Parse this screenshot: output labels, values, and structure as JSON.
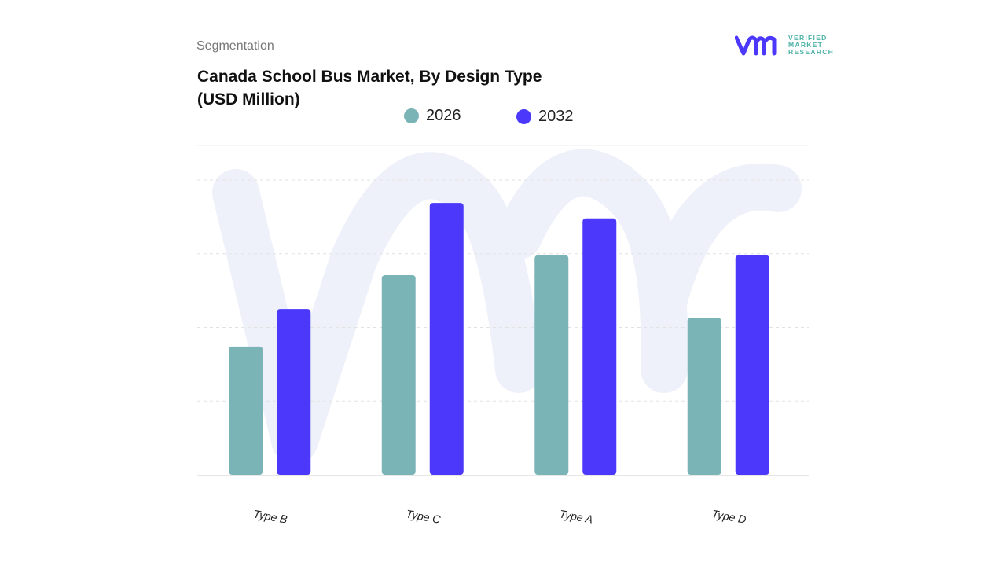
{
  "header": {
    "segmentation": "Segmentation",
    "title_line1": "Canada School Bus Market, By Design Type",
    "title_line2": "(USD Million)"
  },
  "logo": {
    "line1": "VERIFIED",
    "line2": "MARKET",
    "line3": "RESEARCH",
    "mark": "vmr"
  },
  "chart_data": {
    "type": "bar",
    "title": "Canada School Bus Market, By Design Type (USD Million)",
    "categories": [
      "Type B",
      "Type C",
      "Type A",
      "Type D"
    ],
    "series": [
      {
        "name": "2026",
        "color": "#7bb4b7",
        "values": [
          1.74,
          2.71,
          2.98,
          2.13
        ]
      },
      {
        "name": "2032",
        "color": "#4b38fa",
        "values": [
          2.25,
          3.69,
          3.48,
          2.98
        ]
      }
    ],
    "ylim": [
      0,
      4
    ],
    "y_ticks_shown": false,
    "grid": true,
    "legend": "top-center"
  }
}
